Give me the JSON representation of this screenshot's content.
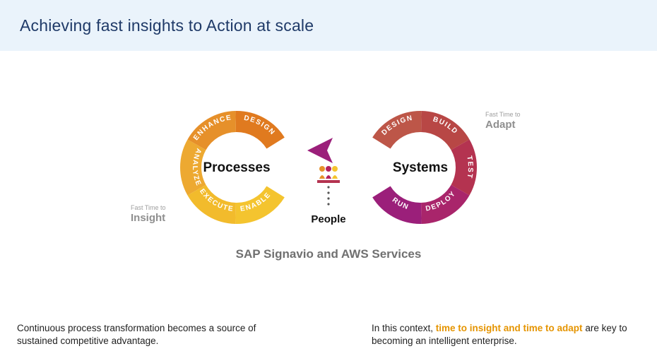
{
  "header": {
    "title": "Achieving fast insights to Action at scale"
  },
  "diagram": {
    "type": "infographic",
    "subtitle": "SAP Signavio and AWS Services",
    "loops": {
      "left": {
        "label": "Processes",
        "label_fontsize": 19
      },
      "right": {
        "label": "Systems",
        "label_fontsize": 19
      },
      "center": {
        "label": "People",
        "label_fontsize": 15
      }
    },
    "tags": {
      "left": {
        "small": "Fast Time to",
        "big": "Insight"
      },
      "right": {
        "small": "Fast Time to",
        "big": "Adapt"
      }
    },
    "left_segments": [
      {
        "label": "DESIGN",
        "color": "#e07a1f"
      },
      {
        "label": "ENHANCE",
        "color": "#e6902a"
      },
      {
        "label": "ANALYZE",
        "color": "#eda931"
      },
      {
        "label": "EXECUTE",
        "color": "#f2bb2c"
      },
      {
        "label": "ENABLE",
        "color": "#f4c42f"
      }
    ],
    "right_segments": [
      {
        "label": "RUN",
        "color": "#9b1f7a"
      },
      {
        "label": "DEPLOY",
        "color": "#a9256b"
      },
      {
        "label": "TEST",
        "color": "#b43350"
      },
      {
        "label": "BUILD",
        "color": "#b84745"
      },
      {
        "label": "DESIGN",
        "color": "#bd5648"
      }
    ],
    "ring": {
      "outer_r": 80,
      "inner_r": 50,
      "stroke_w": 30
    },
    "arrow_color": "#9b1f7a",
    "people_icon": {
      "colors": [
        "#e6902a",
        "#b4225f",
        "#f4c42f"
      ],
      "base_color": "#b43350"
    },
    "background": "#ffffff"
  },
  "footer": {
    "left": "Continuous process transformation becomes a source of sustained competitive advantage.",
    "right_pre": "In this context, ",
    "right_hl": "time to insight and time to adapt",
    "right_post": " are key to becoming an intelligent enterprise."
  }
}
